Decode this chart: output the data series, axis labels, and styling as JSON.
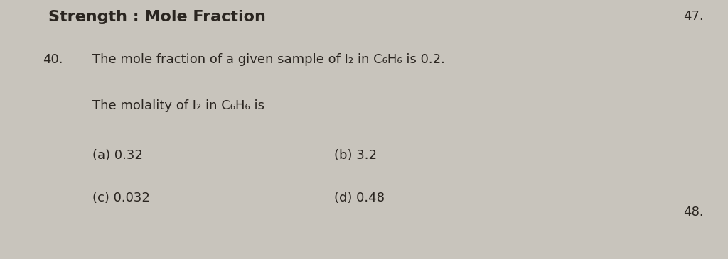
{
  "background_color": "#c8c4bc",
  "title": "Strength : Mole Fraction",
  "title_fontsize": 16,
  "page_num_right": "47.",
  "page_num_bottom": "48.",
  "q_number": "40.",
  "line1_text": "The mole fraction of a given sample of I₂ in C₆H₆ is 0.2.",
  "line2_text": "The molality of I₂ in C₆H₆ is",
  "opt_a": "(a) 0.32",
  "opt_b": "(b) 3.2",
  "opt_c": "(c) 0.032",
  "opt_d": "(d) 0.48",
  "text_color": "#2a2520",
  "font_size_body": 13,
  "font_size_title": 16,
  "font_size_number": 13
}
